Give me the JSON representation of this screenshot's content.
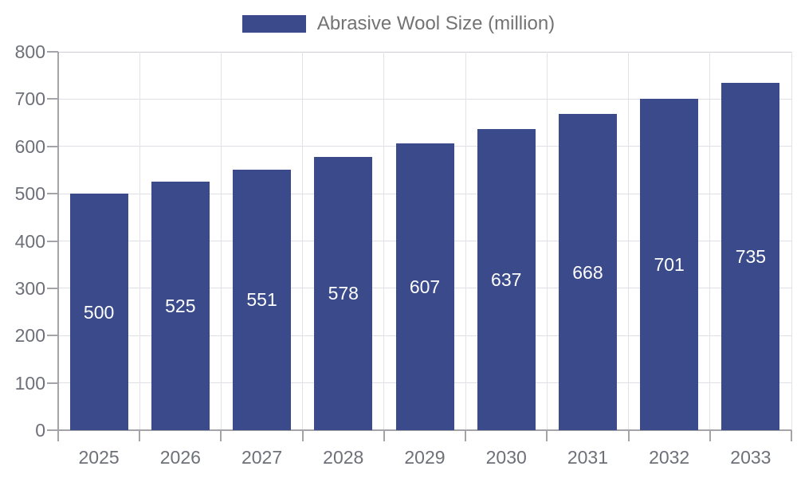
{
  "legend": {
    "label": "Abrasive Wool Size (million)"
  },
  "chart_data": {
    "type": "bar",
    "title": "Abrasive Wool Size (million)",
    "categories": [
      "2025",
      "2026",
      "2027",
      "2028",
      "2029",
      "2030",
      "2031",
      "2032",
      "2033"
    ],
    "values": [
      500,
      525,
      551,
      578,
      607,
      637,
      668,
      701,
      735
    ],
    "series": [
      {
        "name": "Abrasive Wool Size (million)",
        "values": [
          500,
          525,
          551,
          578,
          607,
          637,
          668,
          701,
          735
        ]
      }
    ],
    "xlabel": "",
    "ylabel": "",
    "ylim": [
      0,
      800
    ],
    "ytick_step": 100,
    "yticks": [
      0,
      100,
      200,
      300,
      400,
      500,
      600,
      700,
      800
    ],
    "grid": true,
    "legend_position": "top-center",
    "value_labels_position": "inside-middle",
    "bar_color": "#3A4A8A",
    "bar_label_color": "#FFFFFF",
    "axis_label_color": "#6E7079",
    "legend_text_color": "#737373",
    "grid_color": "#DFDFE6",
    "axis_line_color": "#A3A3A8",
    "background_color": "#FFFFFF"
  }
}
